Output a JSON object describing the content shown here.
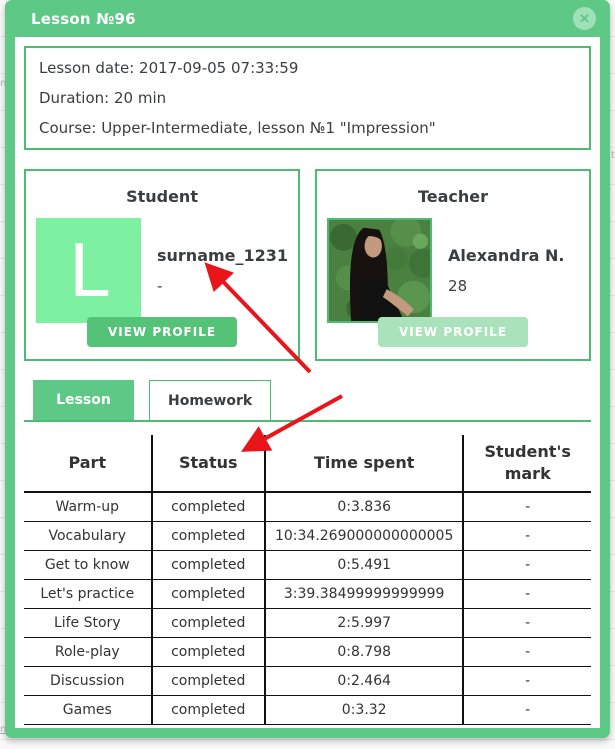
{
  "modal": {
    "title": "Lesson №96",
    "close_icon": "✕"
  },
  "info": {
    "lesson_date": "Lesson date: 2017-09-05 07:33:59",
    "duration": "Duration: 20 min",
    "course": "Course: Upper-Intermediate, lesson №1 \"Impression\""
  },
  "student": {
    "card_title": "Student",
    "avatar_letter": "L",
    "name": "surname_1231",
    "detail": "-",
    "button_label": "VIEW PROFILE"
  },
  "teacher": {
    "card_title": "Teacher",
    "name": "Alexandra N.",
    "detail": "28",
    "button_label": "VIEW PROFILE"
  },
  "tabs": [
    {
      "label": "Lesson",
      "active": true
    },
    {
      "label": "Homework",
      "active": false
    }
  ],
  "table": {
    "headers": [
      "Part",
      "Status",
      "Time spent",
      "Student's mark"
    ],
    "rows": [
      [
        "Warm-up",
        "completed",
        "0:3.836",
        "-"
      ],
      [
        "Vocabulary",
        "completed",
        "10:34.269000000000005",
        "-"
      ],
      [
        "Get to know",
        "completed",
        "0:5.491",
        "-"
      ],
      [
        "Let's practice",
        "completed",
        "3:39.38499999999999",
        "-"
      ],
      [
        "Life Story",
        "completed",
        "2:5.997",
        "-"
      ],
      [
        "Role-play",
        "completed",
        "0:8.798",
        "-"
      ],
      [
        "Discussion",
        "completed",
        "0:2.464",
        "-"
      ],
      [
        "Games",
        "completed",
        "0:3.32",
        "-"
      ]
    ]
  },
  "colors": {
    "primary_green": "#5ec886",
    "avatar_green": "#7df0a1",
    "student_button_green": "#54c377",
    "teacher_button_pale_green": "#a9e2bb",
    "annotation_arrow_red": "#e8151b",
    "table_border_black": "#111111"
  }
}
